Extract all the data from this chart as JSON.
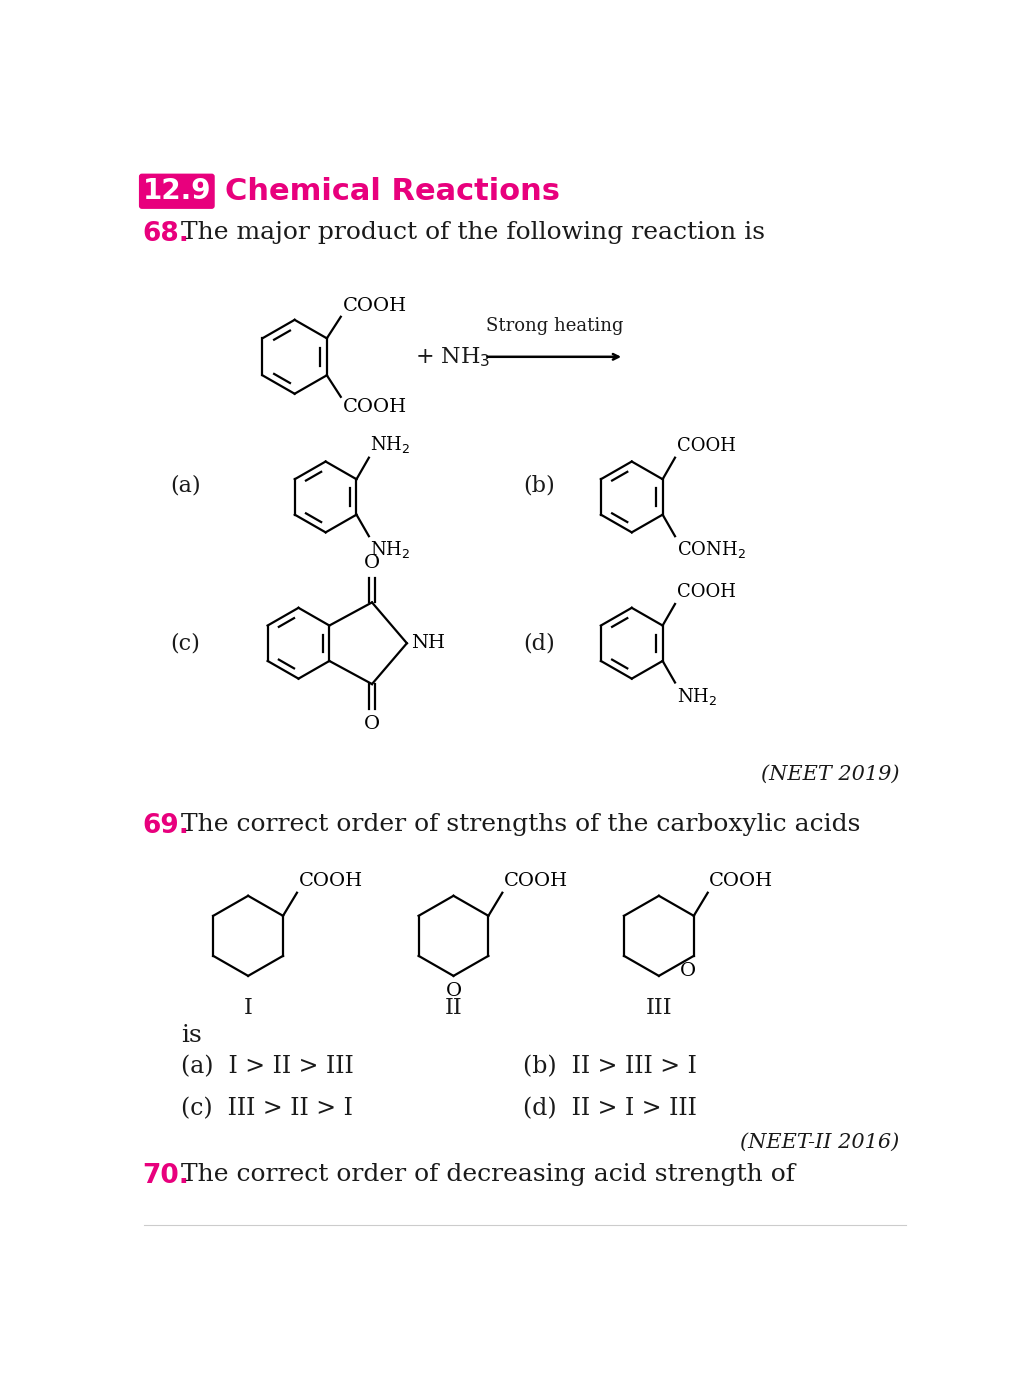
{
  "bg_color": "#ffffff",
  "header_bg": "#e8007d",
  "header_text": "12.9",
  "header_title": "Chemical Reactions",
  "q68_text": "The major product of the following reaction is",
  "q69_text": "The correct order of strengths of the carboxylic acids",
  "neet2019_text": "(NEET 2019)",
  "neet2016_text": "(NEET-II 2016)",
  "options_69_a": "(a)  I > II > III",
  "options_69_b": "(b)  II > III > I",
  "options_69_c": "(c)  III > II > I",
  "options_69_d": "(d)  II > I > III",
  "q70_text": "The correct order of decreasing acid strength of",
  "text_color": "#1a1a1a",
  "pink_color": "#e8007d"
}
